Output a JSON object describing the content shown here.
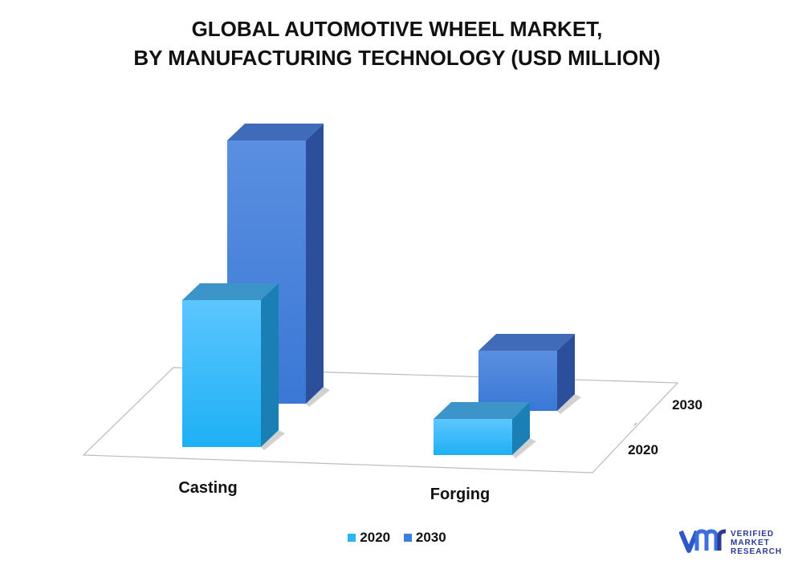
{
  "title_line1": "GLOBAL AUTOMOTIVE  WHEEL MARKET,",
  "title_line2": "BY MANUFACTURING TECHNOLOGY (USD MILLION)",
  "colors": {
    "2020": "#29b6f6",
    "2030": "#3f7fd8"
  },
  "chart_data": {
    "type": "bar",
    "title": "GLOBAL AUTOMOTIVE  WHEEL MARKET, BY MANUFACTURING TECHNOLOGY (USD MILLION)",
    "categories": [
      "Casting",
      "Forging"
    ],
    "depth_labels": [
      "2020",
      "2030"
    ],
    "series": [
      {
        "name": "2020",
        "values": [
          183,
          45
        ]
      },
      {
        "name": "2030",
        "values": [
          328,
          75
        ]
      }
    ],
    "grid": false,
    "legend_position": "bottom-center",
    "value_axis_labels_shown": false,
    "projection": "3d"
  },
  "legend": {
    "items": [
      "2020",
      "2030"
    ]
  },
  "logo": {
    "line1": "VERIFIED",
    "line2": "MARKET",
    "line3": "RESEARCH"
  }
}
